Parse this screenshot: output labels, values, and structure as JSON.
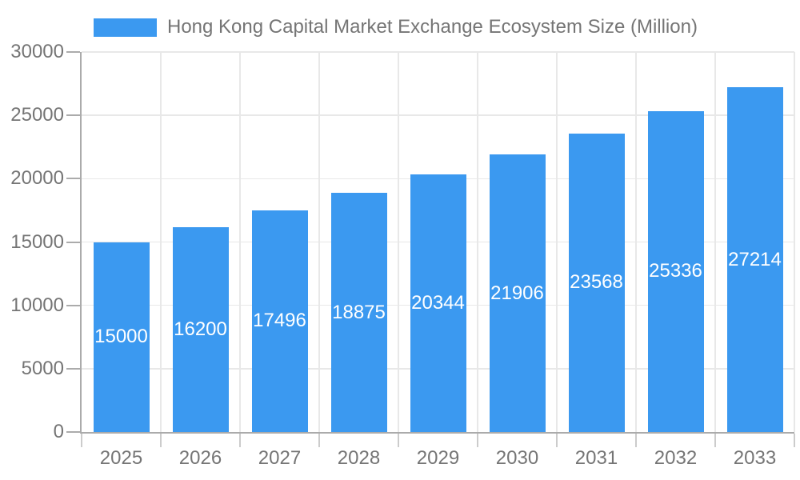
{
  "colors": {
    "bar": "#3B99F0",
    "axis": "#ABABAB",
    "grid": "#E8E8E8",
    "tick": "#CCCCCC",
    "label": "#757575",
    "barlabel": "#FFFFFF",
    "background": "#FFFFFF"
  },
  "legend": {
    "label": "Hong Kong Capital Market Exchange Ecosystem Size (Million)"
  },
  "chart_data": {
    "type": "bar",
    "title": "Hong Kong Capital Market Exchange Ecosystem Size (Million)",
    "categories": [
      "2025",
      "2026",
      "2027",
      "2028",
      "2029",
      "2030",
      "2031",
      "2032",
      "2033"
    ],
    "values": [
      15000,
      16200,
      17496,
      18875,
      20344,
      21906,
      23568,
      25336,
      27214
    ],
    "xlabel": "",
    "ylabel": "",
    "ylim": [
      0,
      30000
    ],
    "y_ticks": [
      0,
      5000,
      10000,
      15000,
      20000,
      25000,
      30000
    ],
    "grid": true,
    "legend_position": "top",
    "bar_value_labels": "inside-center"
  }
}
